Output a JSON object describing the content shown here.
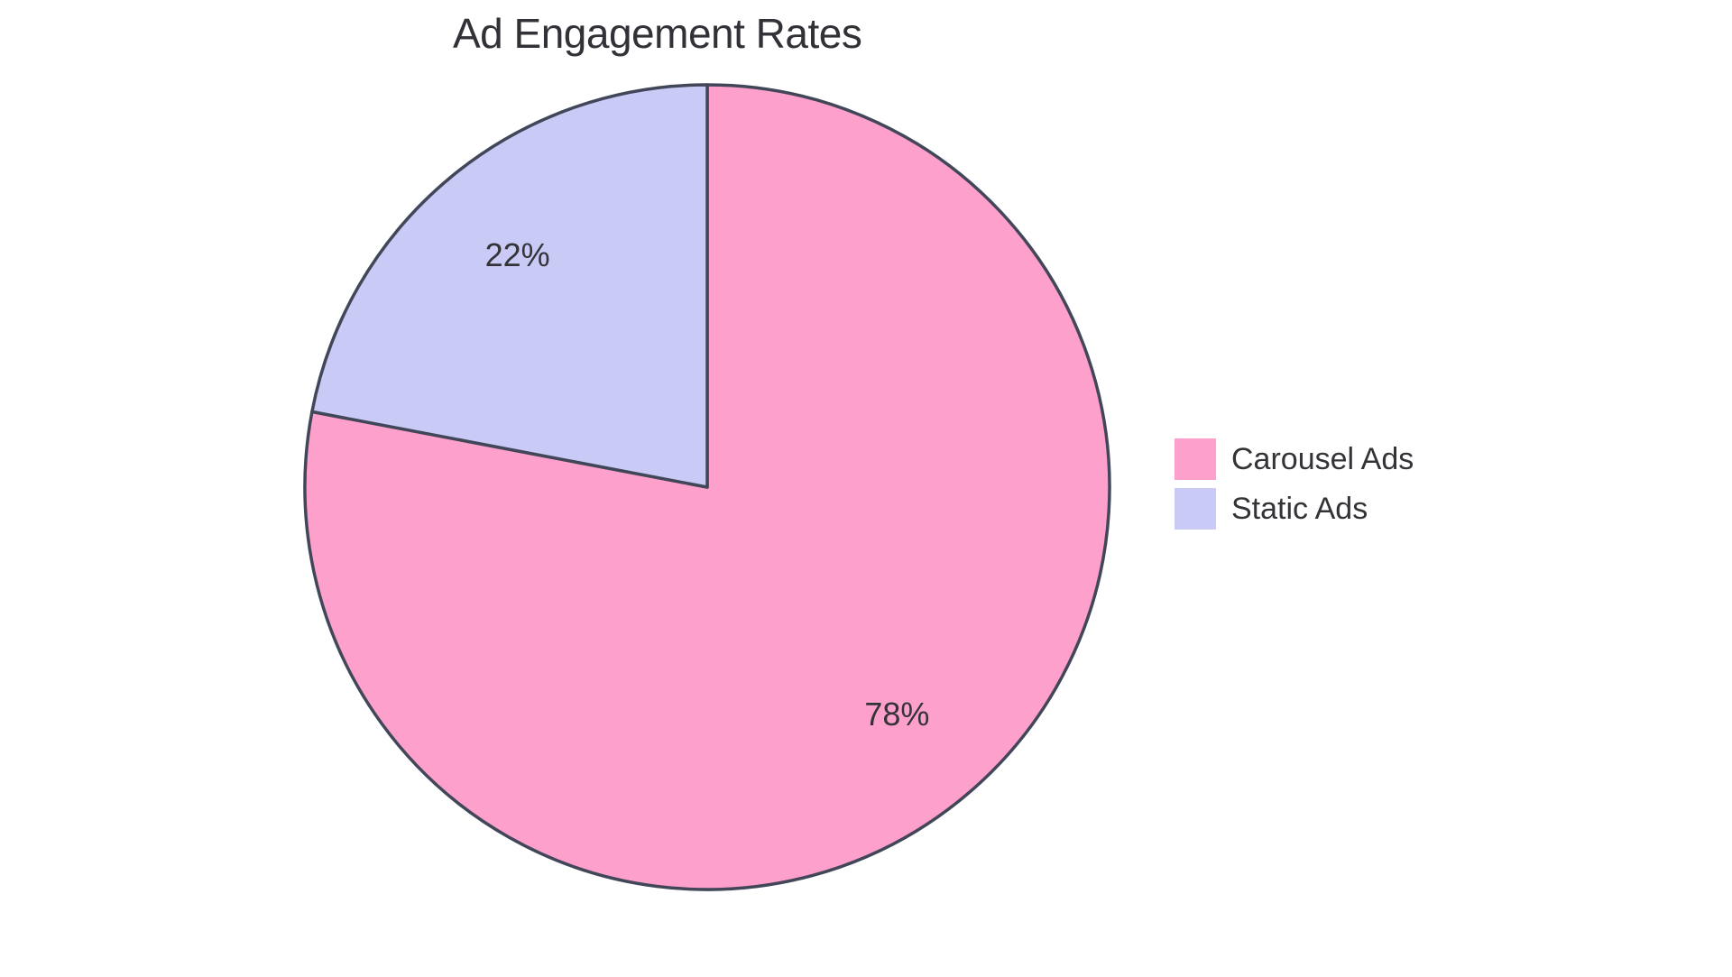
{
  "title": "Ad Engagement Rates",
  "chart_data": {
    "type": "pie",
    "title": "Ad Engagement Rates",
    "labels": [
      "Carousel Ads",
      "Static Ads"
    ],
    "values": [
      78,
      22
    ],
    "slice_labels": [
      "78%",
      "22%"
    ],
    "colors": [
      "#FEA0CC",
      "#C9CAF5"
    ],
    "stroke_color": "#424659",
    "start_angle": "12 o'clock",
    "direction": "clockwise",
    "legend_position": "right",
    "grid": false
  },
  "legend": {
    "items": [
      {
        "label": "Carousel Ads",
        "color": "#FEA0CC"
      },
      {
        "label": "Static Ads",
        "color": "#C9CAF5"
      }
    ]
  },
  "text_color": "#333338"
}
